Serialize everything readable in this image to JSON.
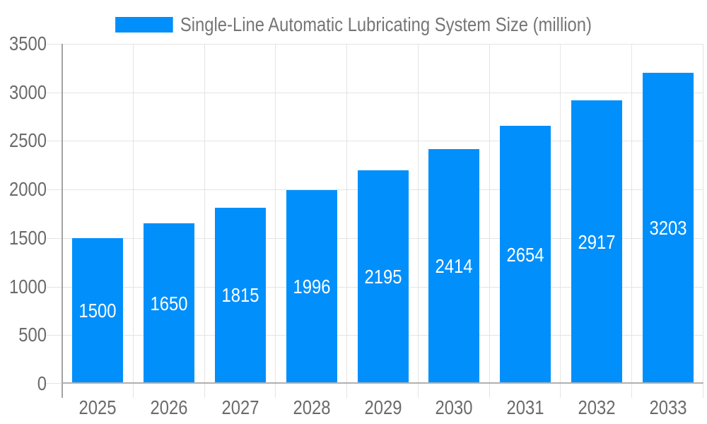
{
  "chart_data": {
    "type": "bar",
    "title": "Single-Line Automatic Lubricating System Size (million)",
    "categories": [
      "2025",
      "2026",
      "2027",
      "2028",
      "2029",
      "2030",
      "2031",
      "2032",
      "2033"
    ],
    "values": [
      1500,
      1650,
      1815,
      1996,
      2195,
      2414,
      2654,
      2917,
      3203
    ],
    "xlabel": "",
    "ylabel": "",
    "ylim": [
      0,
      3500
    ],
    "yticks": [
      0,
      500,
      1000,
      1500,
      2000,
      2500,
      3000,
      3500
    ],
    "grid": true,
    "legend_position": "top",
    "bar_labels_shown": true,
    "colors": {
      "bar": "#008FFB",
      "bar_label": "#ffffff",
      "axis_label": "#6b6b6b",
      "title": "#757575",
      "gridline": "#e4e4e4",
      "axis_line": "#a3a3a3",
      "x_axis_line": "#b0b0b0"
    }
  }
}
